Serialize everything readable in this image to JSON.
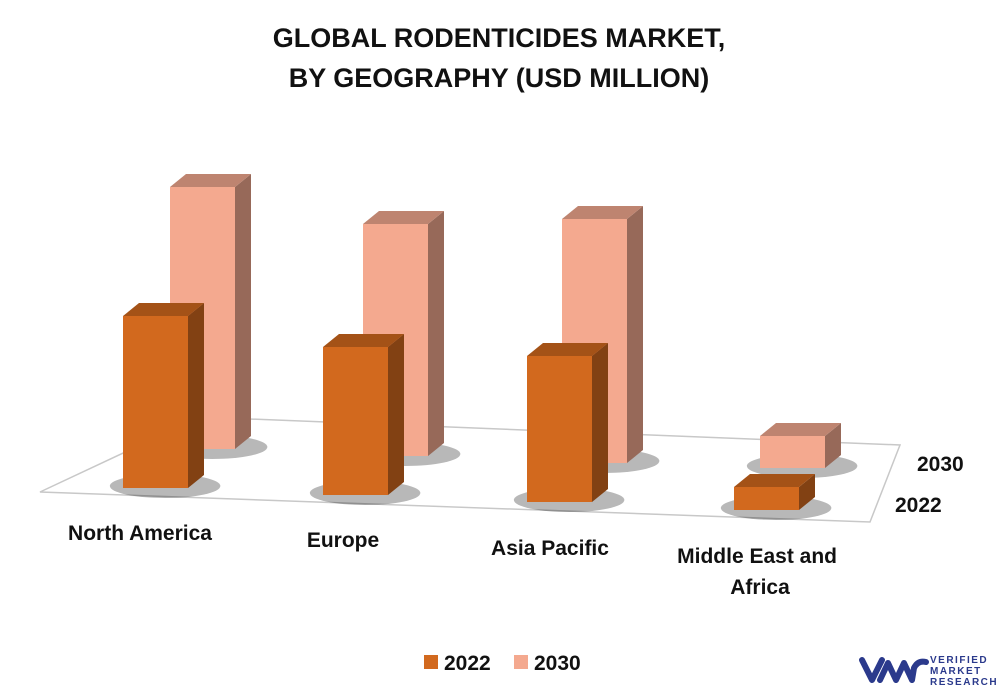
{
  "chart_data": {
    "type": "bar",
    "title": [
      "GLOBAL RODENTICIDES MARKET,",
      "BY GEOGRAPHY (USD MILLION)"
    ],
    "categories": [
      "North America",
      "Europe",
      "Asia Pacific",
      "Middle East and Africa"
    ],
    "series": [
      {
        "name": "2022",
        "color": "#D2691E",
        "values": [
          172,
          148,
          146,
          23
        ]
      },
      {
        "name": "2030",
        "color": "#F4A98F",
        "values": [
          262,
          232,
          244,
          32
        ]
      }
    ],
    "ylim": [
      0,
      270
    ],
    "legend": "bottom",
    "grid": false,
    "projection": "3d"
  },
  "brand": {
    "name": "vmr",
    "lines": [
      "VERIFIED",
      "MARKET",
      "RESEARCH"
    ],
    "color": "#2B3A8C"
  }
}
